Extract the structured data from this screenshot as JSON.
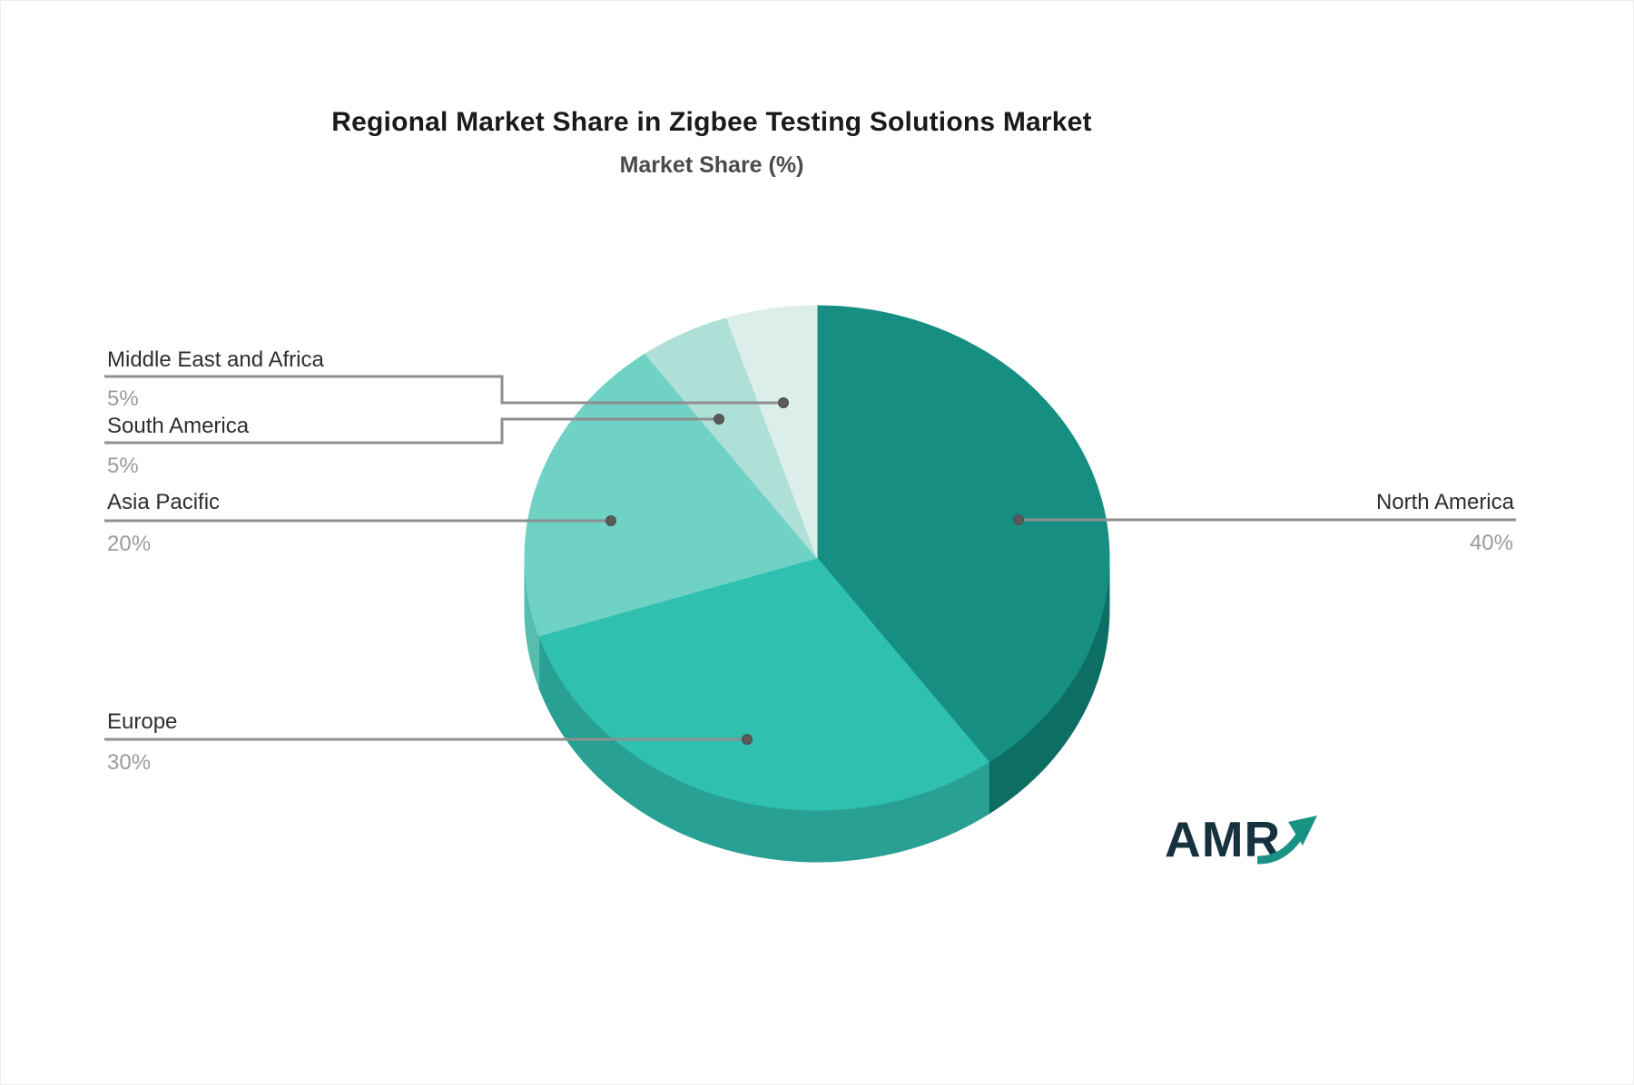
{
  "title": "Regional Market Share in Zigbee Testing Solutions Market",
  "subtitle": "Market Share (%)",
  "logo": {
    "text": "AMR"
  },
  "colors": {
    "background": "#ffffff",
    "leader_line": "#8f8f8f",
    "leader_dot": "#5a5a5a",
    "label_text": "#2e2e2e",
    "percent_text": "#9b9b9b",
    "logo_text": "#16323e",
    "logo_arrow": "#1b9384"
  },
  "chart_data": {
    "type": "pie",
    "style": "3d",
    "title": "Regional Market Share in Zigbee Testing Solutions Market",
    "subtitle": "Market Share (%)",
    "unit": "%",
    "start_angle_deg": 0,
    "direction": "clockwise",
    "legend_position": "none",
    "labels": "leader-lines",
    "slices": [
      {
        "label": "North America",
        "value": 40,
        "display": "40%",
        "color": "#168f82",
        "side_color": "#0d6e63"
      },
      {
        "label": "Europe",
        "value": 30,
        "display": "30%",
        "color": "#2fc0af",
        "side_color": "#28a093"
      },
      {
        "label": "Asia Pacific",
        "value": 20,
        "display": "20%",
        "color": "#6fd2c4",
        "side_color": "#57bdaf"
      },
      {
        "label": "South America",
        "value": 5,
        "display": "5%",
        "color": "#afe0d7",
        "side_color": "#9ccdc4"
      },
      {
        "label": "Middle East and Africa",
        "value": 5,
        "display": "5%",
        "color": "#dceeea",
        "side_color": "#c4ddd8"
      }
    ]
  }
}
